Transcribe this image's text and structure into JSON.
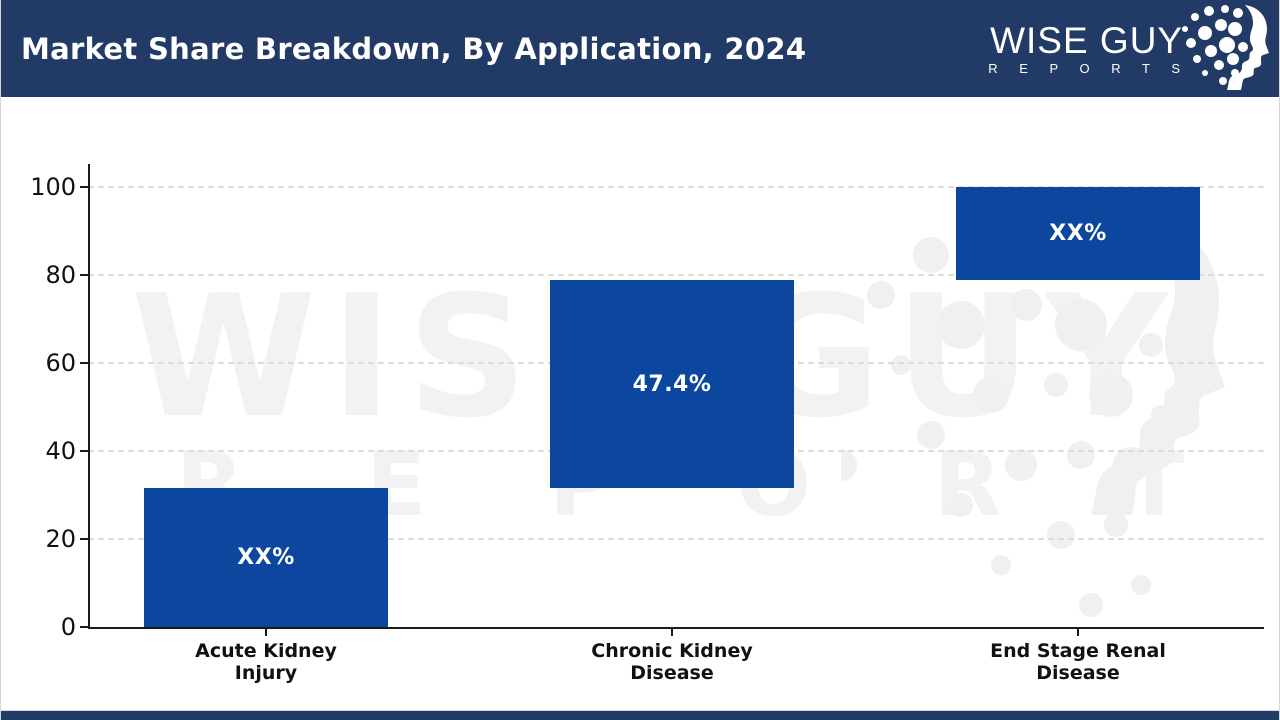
{
  "header": {
    "title": "Market Share Breakdown, By Application, 2024",
    "logo": {
      "wordmark": "WISE GUY",
      "subtext": "R E P O R T S"
    }
  },
  "watermark": {
    "wordmark": "WISE GUY",
    "subtext": "R E P O R T S"
  },
  "colors": {
    "header_navy": "#213a66",
    "footer_navy": "#213a66",
    "bar_blue": "#0c469e",
    "grid_gray": "#dcdcdc",
    "axis_black": "#1a1a1a",
    "watermark_gray": "#f2f2f5"
  },
  "chart_data": {
    "type": "bar",
    "subtype": "floating-segment-bars",
    "title": "Market Share Breakdown, By Application, 2024",
    "categories": [
      [
        "Acute Kidney",
        "Injury"
      ],
      [
        "Chronic Kidney",
        "Disease"
      ],
      [
        "End Stage Renal",
        "Disease"
      ]
    ],
    "bars": [
      {
        "label": "XX%",
        "from": 0,
        "to": 31.5
      },
      {
        "label": "47.4%",
        "from": 31.5,
        "to": 78.9
      },
      {
        "label": "XX%",
        "from": 78.9,
        "to": 100
      }
    ],
    "yticks": [
      0,
      20,
      40,
      60,
      80,
      100
    ],
    "ylim": [
      0,
      105
    ],
    "xlabel": "",
    "ylabel": "",
    "grid": "dashed-horizontal",
    "legend": "none",
    "bar_color": "#0c469e",
    "bar_label_color": "#ffffff"
  }
}
